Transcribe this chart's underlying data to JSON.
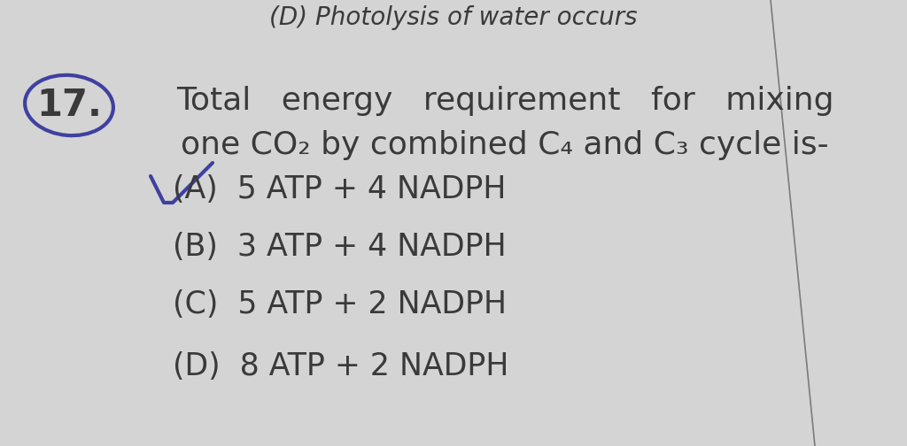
{
  "background_color": "#d4d4d4",
  "paper_color": "#e8e8e8",
  "top_text": "(D) Photolysis of water occurs",
  "question_number": "17.",
  "question_line1": "Total   energy   requirement   for   mixing",
  "question_line2": "one CO₂ by combined C₄ and C₃ cycle is-",
  "options": [
    "(A)  5 ATP + 4 NADPH",
    "(B)  3 ATP + 4 NADPH",
    "(C)  5 ATP + 2 NADPH",
    "(D)  8 ATP + 2 NADPH"
  ],
  "circle_color": "#4040a0",
  "text_color": "#3a3a3a",
  "checkmark_color": "#4040a0",
  "right_line_color": "#555555",
  "font_size_question": 26,
  "font_size_options": 25,
  "font_size_top": 20,
  "font_size_qnum": 26
}
